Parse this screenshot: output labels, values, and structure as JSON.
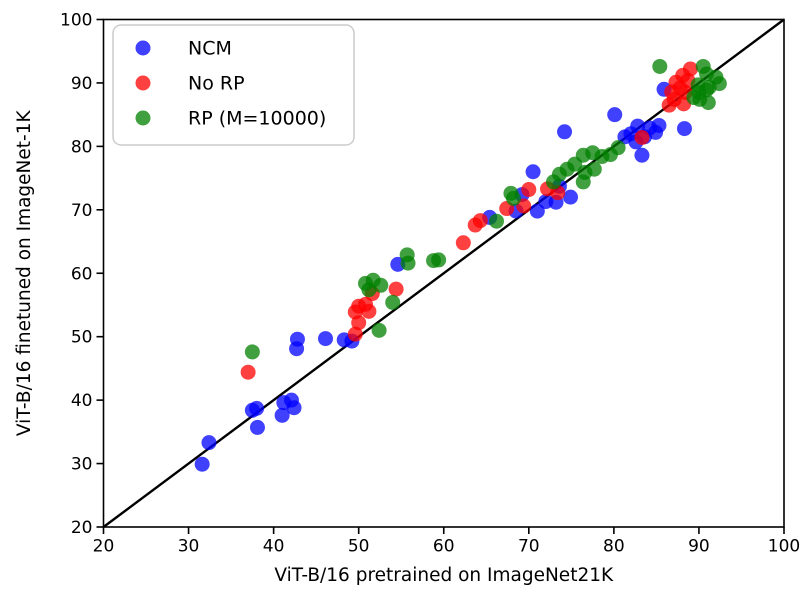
{
  "figure": {
    "background": "#ffffff"
  },
  "chart_data": {
    "type": "scatter",
    "title": "",
    "xlabel": "ViT-B/16 pretrained on ImageNet21K",
    "ylabel": "ViT-B/16 finetuned on ImageNet-1K",
    "xlim": [
      20,
      100
    ],
    "ylim": [
      20,
      100
    ],
    "x_ticks": [
      20,
      30,
      40,
      50,
      60,
      70,
      80,
      90,
      100
    ],
    "y_ticks": [
      20,
      30,
      40,
      50,
      60,
      70,
      80,
      90,
      100
    ],
    "grid": false,
    "legend_position": "upper left",
    "marker_opacity": 0.75,
    "reference_line": {
      "type": "identity",
      "from": [
        20,
        20
      ],
      "to": [
        100,
        100
      ],
      "color": "#000000"
    },
    "series": [
      {
        "name": "NCM",
        "color": "#0000ff",
        "points": [
          [
            31.6,
            29.9
          ],
          [
            32.4,
            33.3
          ],
          [
            37.5,
            38.4
          ],
          [
            38.0,
            38.7
          ],
          [
            38.1,
            35.7
          ],
          [
            41.0,
            37.6
          ],
          [
            41.2,
            39.6
          ],
          [
            42.1,
            40.0
          ],
          [
            42.4,
            38.8
          ],
          [
            42.7,
            48.1
          ],
          [
            42.8,
            49.6
          ],
          [
            46.1,
            49.7
          ],
          [
            48.3,
            49.5
          ],
          [
            49.2,
            49.3
          ],
          [
            54.6,
            61.4
          ],
          [
            65.4,
            68.8
          ],
          [
            68.5,
            69.8
          ],
          [
            69.2,
            72.4
          ],
          [
            70.5,
            76.0
          ],
          [
            71.0,
            69.8
          ],
          [
            72.0,
            71.3
          ],
          [
            73.2,
            71.2
          ],
          [
            73.6,
            73.7
          ],
          [
            74.9,
            72.0
          ],
          [
            74.2,
            82.3
          ],
          [
            80.1,
            85.0
          ],
          [
            81.3,
            81.5
          ],
          [
            82.0,
            82.0
          ],
          [
            82.6,
            80.7
          ],
          [
            82.8,
            83.2
          ],
          [
            83.3,
            78.6
          ],
          [
            83.6,
            81.5
          ],
          [
            84.2,
            82.9
          ],
          [
            84.9,
            82.2
          ],
          [
            85.3,
            83.3
          ],
          [
            85.9,
            89.0
          ],
          [
            88.3,
            82.8
          ]
        ]
      },
      {
        "name": "No RP",
        "color": "#ff0000",
        "points": [
          [
            37.0,
            44.4
          ],
          [
            49.6,
            50.4
          ],
          [
            50.0,
            52.2
          ],
          [
            49.6,
            53.9
          ],
          [
            50.0,
            54.8
          ],
          [
            50.8,
            55.1
          ],
          [
            51.2,
            54.0
          ],
          [
            51.6,
            56.8
          ],
          [
            54.4,
            57.5
          ],
          [
            62.3,
            64.8
          ],
          [
            63.7,
            67.6
          ],
          [
            64.3,
            68.3
          ],
          [
            67.4,
            70.2
          ],
          [
            69.4,
            70.6
          ],
          [
            70.0,
            73.2
          ],
          [
            72.2,
            73.3
          ],
          [
            73.4,
            72.7
          ],
          [
            83.3,
            81.4
          ],
          [
            86.5,
            86.5
          ],
          [
            87.1,
            87.4
          ],
          [
            86.8,
            88.6
          ],
          [
            87.8,
            89.2
          ],
          [
            88.4,
            88.5
          ],
          [
            87.3,
            90.1
          ],
          [
            88.7,
            90.4
          ],
          [
            88.1,
            91.2
          ],
          [
            89.0,
            92.2
          ],
          [
            88.2,
            86.7
          ]
        ]
      },
      {
        "name": "RP (M=10000)",
        "color": "#008000",
        "points": [
          [
            37.5,
            47.6
          ],
          [
            50.8,
            58.4
          ],
          [
            51.7,
            58.9
          ],
          [
            52.6,
            58.1
          ],
          [
            51.2,
            57.4
          ],
          [
            52.4,
            51.0
          ],
          [
            54.0,
            55.4
          ],
          [
            55.7,
            62.9
          ],
          [
            55.8,
            61.6
          ],
          [
            58.8,
            62.0
          ],
          [
            59.4,
            62.1
          ],
          [
            66.2,
            68.2
          ],
          [
            67.9,
            72.6
          ],
          [
            68.2,
            71.8
          ],
          [
            72.9,
            74.4
          ],
          [
            73.6,
            75.6
          ],
          [
            74.5,
            76.4
          ],
          [
            75.4,
            77.2
          ],
          [
            76.4,
            74.4
          ],
          [
            76.6,
            75.9
          ],
          [
            77.7,
            76.4
          ],
          [
            76.4,
            78.6
          ],
          [
            77.5,
            79.0
          ],
          [
            78.6,
            78.4
          ],
          [
            79.6,
            78.7
          ],
          [
            80.5,
            79.8
          ],
          [
            85.4,
            92.6
          ],
          [
            89.4,
            87.7
          ],
          [
            90.0,
            88.5
          ],
          [
            89.9,
            89.7
          ],
          [
            90.1,
            87.4
          ],
          [
            90.5,
            92.6
          ],
          [
            90.9,
            91.4
          ],
          [
            90.9,
            88.9
          ],
          [
            91.1,
            86.9
          ],
          [
            91.2,
            89.3
          ],
          [
            92.0,
            90.9
          ],
          [
            92.4,
            89.9
          ]
        ]
      }
    ]
  }
}
